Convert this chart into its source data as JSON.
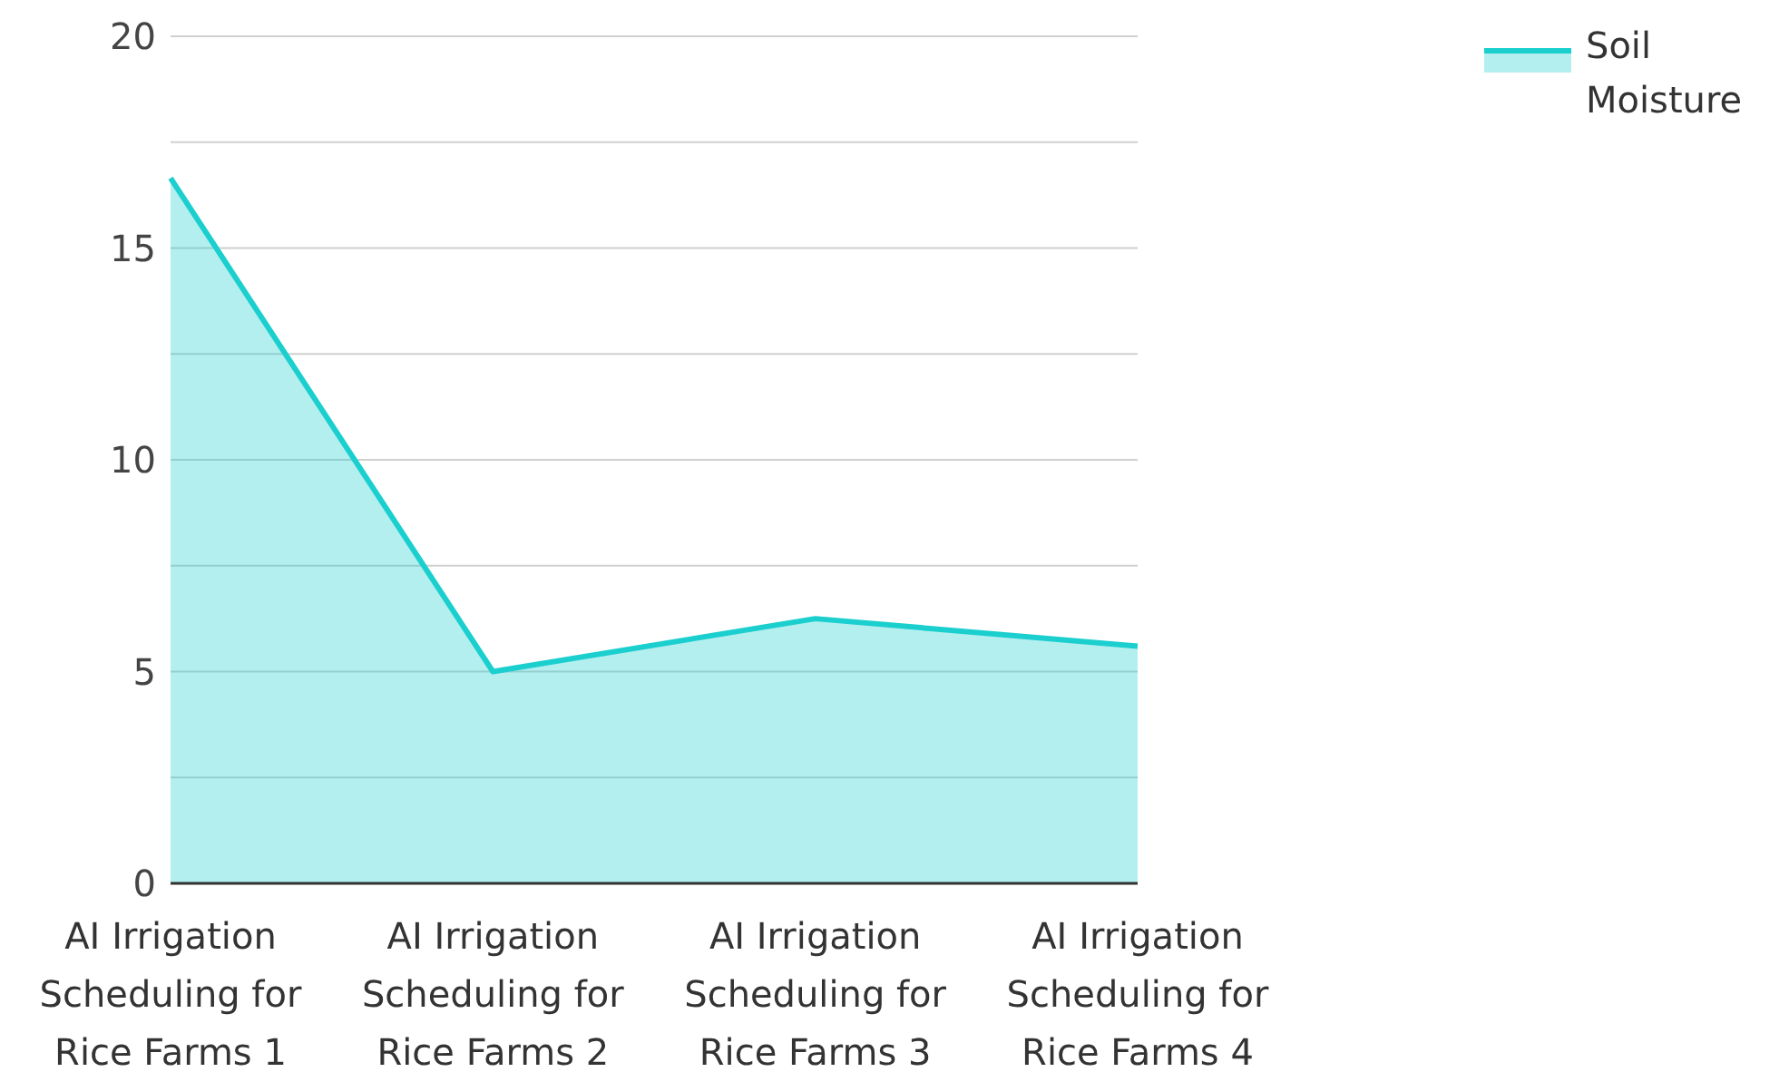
{
  "chart_data": {
    "type": "area",
    "categories": [
      "AI Irrigation Scheduling for Rice Farms 1",
      "AI Irrigation Scheduling for Rice Farms 2",
      "AI Irrigation Scheduling for Rice Farms 3",
      "AI Irrigation Scheduling for Rice Farms 4"
    ],
    "series": [
      {
        "name": "Soil Moisture",
        "color": "#1ccfcf",
        "values": [
          16.65,
          5.0,
          6.25,
          5.6
        ]
      }
    ],
    "ylim": [
      0,
      20
    ],
    "yticks": [
      0,
      {
        "value": 2.5,
        "label": null
      },
      5,
      {
        "value": 7.5,
        "label": null
      },
      10,
      {
        "value": 12.5,
        "label": null
      },
      15,
      {
        "value": 17.5,
        "label": null
      },
      20
    ],
    "grid": "y",
    "legend": "top right"
  }
}
